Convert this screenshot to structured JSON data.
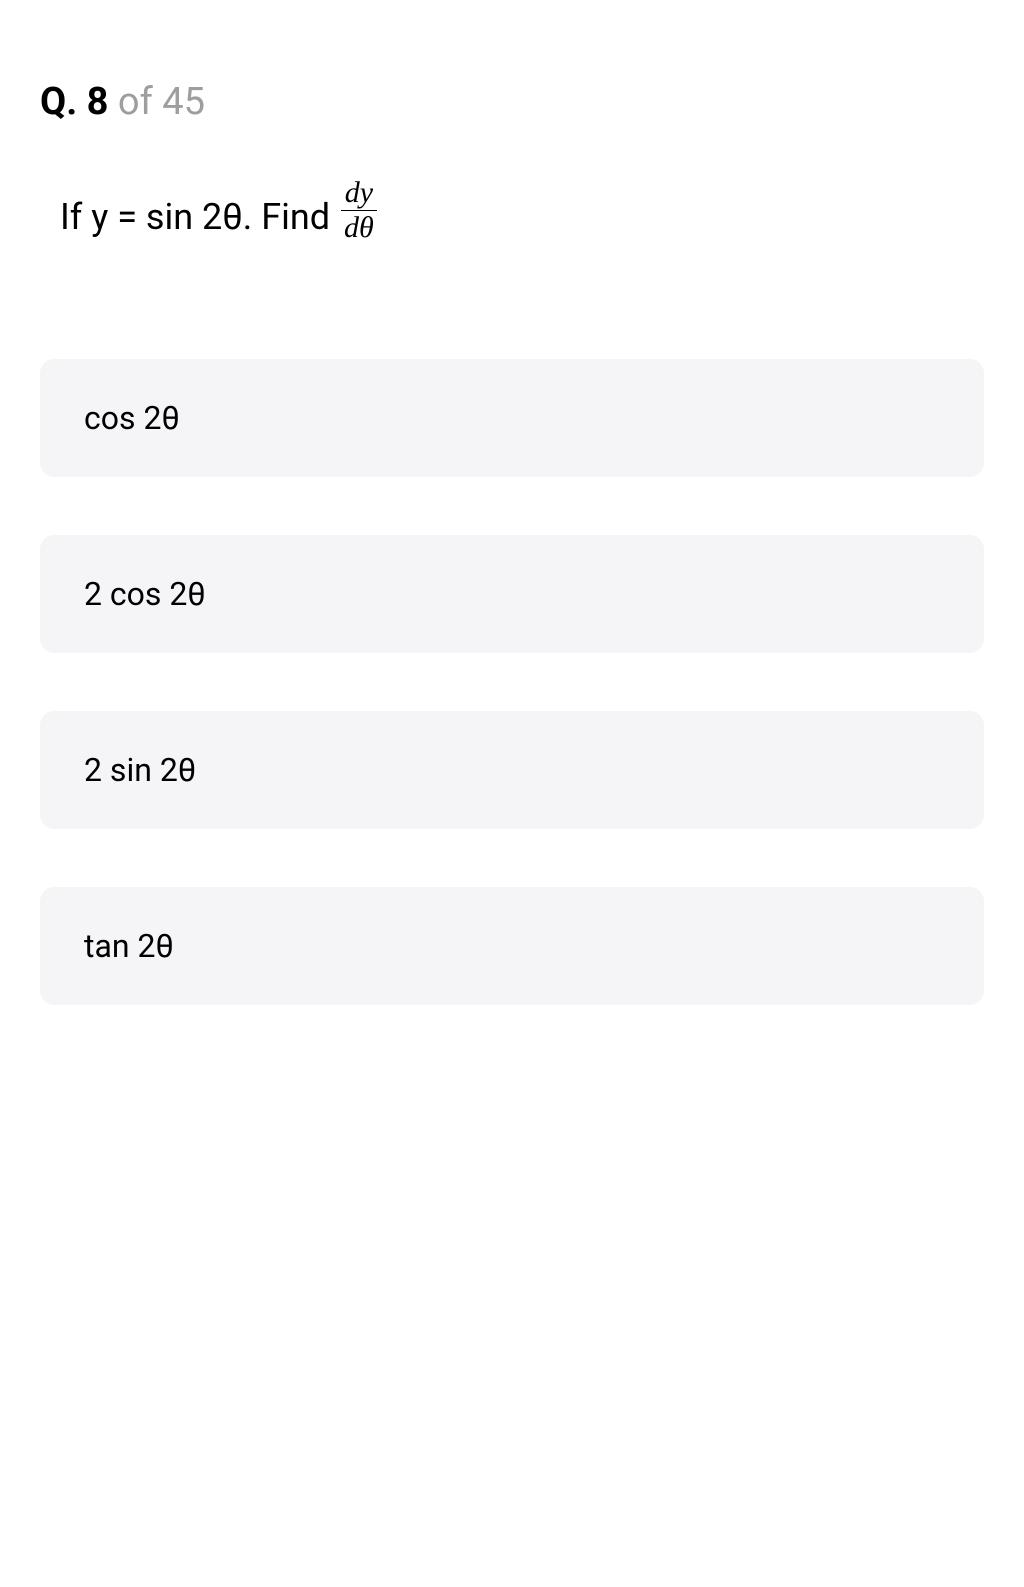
{
  "question": {
    "prefix": "Q.",
    "number": "8",
    "of_total": " of 45",
    "text_part1": "If y = sin 2θ. Find ",
    "fraction_numerator": "dy",
    "fraction_denominator": "dθ"
  },
  "options": [
    {
      "label": "cos 2θ"
    },
    {
      "label": "2 cos 2θ"
    },
    {
      "label": "2 sin 2θ"
    },
    {
      "label": "tan 2θ"
    }
  ],
  "colors": {
    "background": "#ffffff",
    "option_background": "#f5f5f7",
    "text_primary": "#000000",
    "text_muted": "#9e9e9e"
  }
}
